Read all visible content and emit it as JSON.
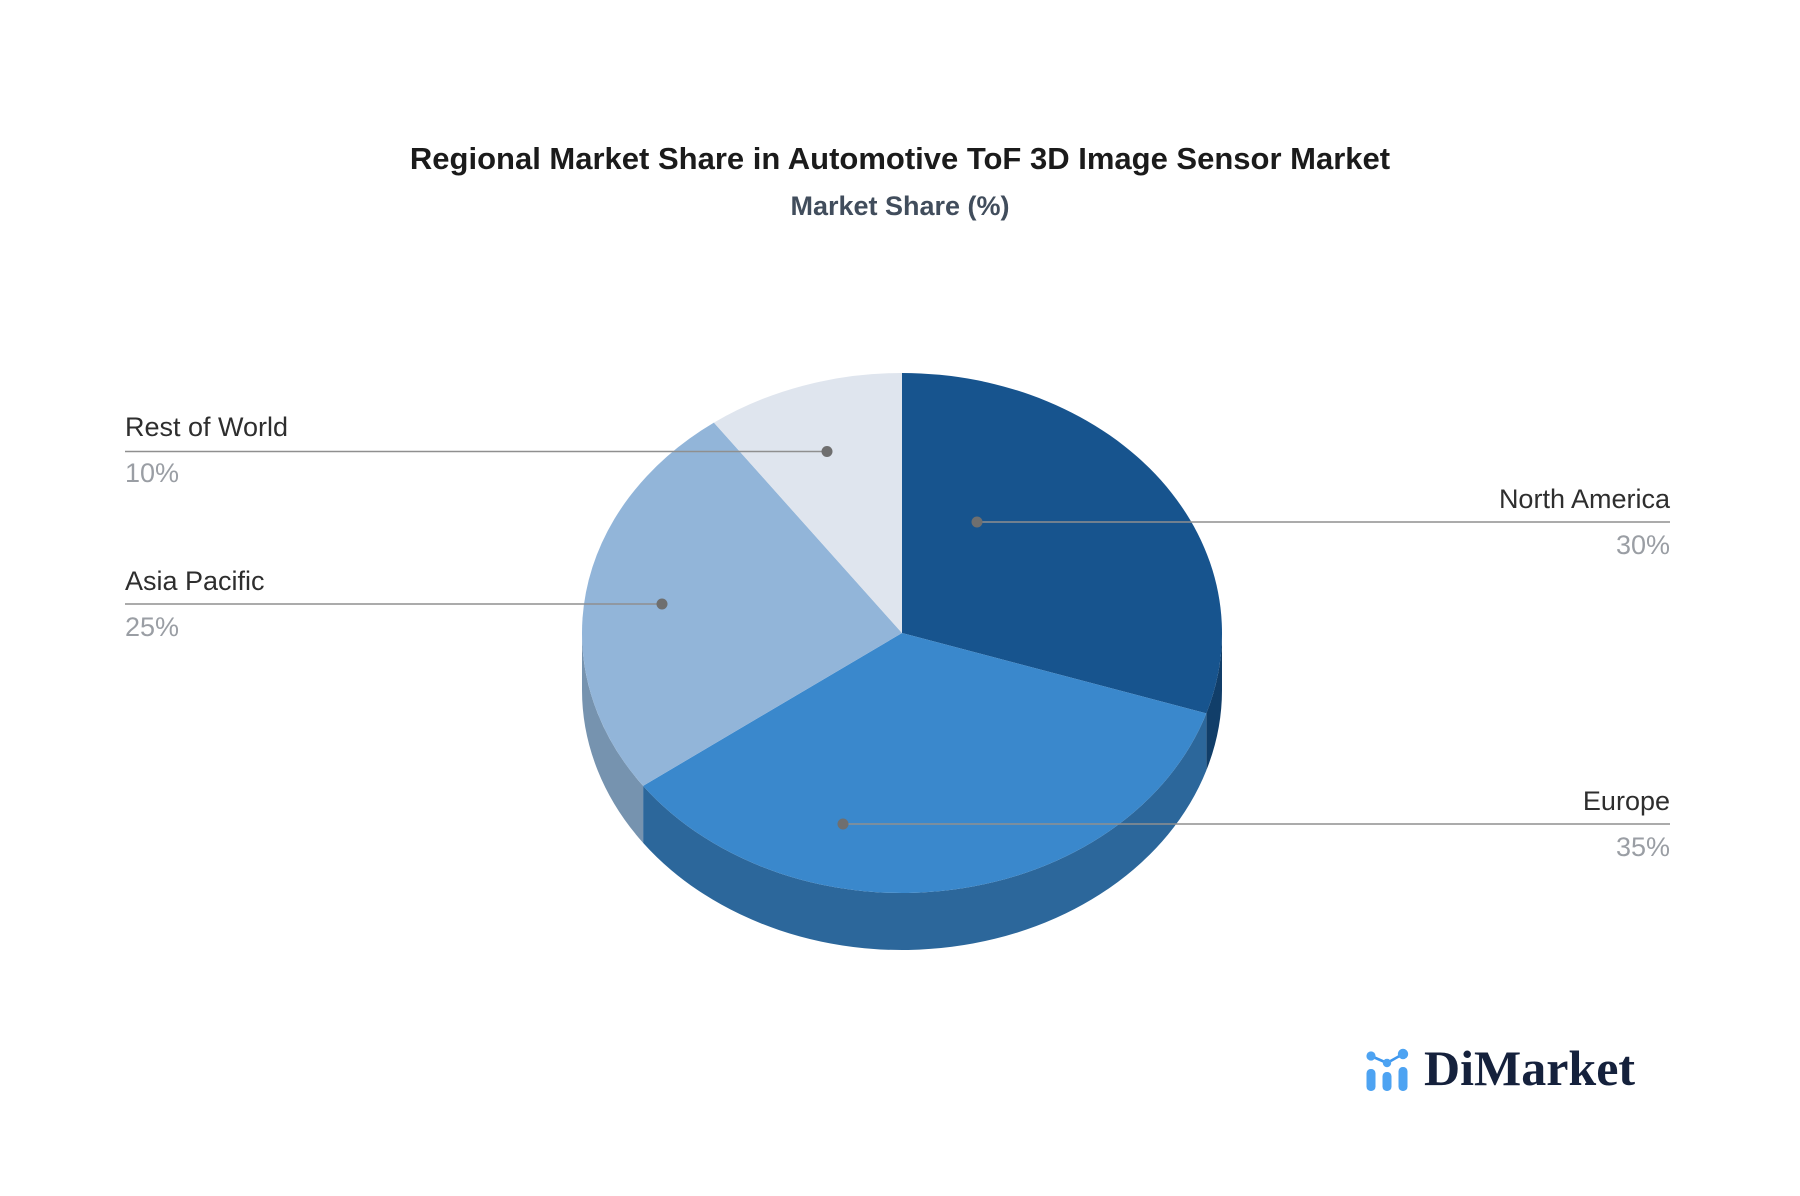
{
  "header": {
    "title": "Regional Market Share in Automotive ToF 3D Image Sensor Market",
    "subtitle": "Market Share (%)"
  },
  "chart_data": {
    "type": "pie",
    "style": "3d-pie",
    "title": "Regional Market Share in Automotive ToF 3D Image Sensor Market",
    "subtitle": "Market Share (%)",
    "unit": "%",
    "start_angle": "12-oclock",
    "direction": "clockwise",
    "legend_position": "callout-labels",
    "slices": [
      {
        "label": "North America",
        "value": 30,
        "pct_label": "30%",
        "color": "#17548E",
        "side_color": "#113E69"
      },
      {
        "label": "Europe",
        "value": 35,
        "pct_label": "35%",
        "color": "#3A88CC",
        "side_color": "#2C679B"
      },
      {
        "label": "Asia Pacific",
        "value": 25,
        "pct_label": "25%",
        "color": "#92B5D9",
        "side_color": "#7693AF"
      },
      {
        "label": "Rest of World",
        "value": 10,
        "pct_label": "10%",
        "color": "#DFE5EE",
        "side_color": "#B7C0CC"
      }
    ],
    "label_name_color": "#2e2e2e",
    "label_pct_color": "#9a9ea4",
    "leader_line_color": "#8f8f8f",
    "leader_dot_color": "#6f6f6f"
  },
  "logo": {
    "text": "DiMarket",
    "icon": "bar-line-chart-icon",
    "icon_color": "#4DA3F2",
    "icon_line_color": "#3E97EE",
    "text_color": "#15213c"
  }
}
